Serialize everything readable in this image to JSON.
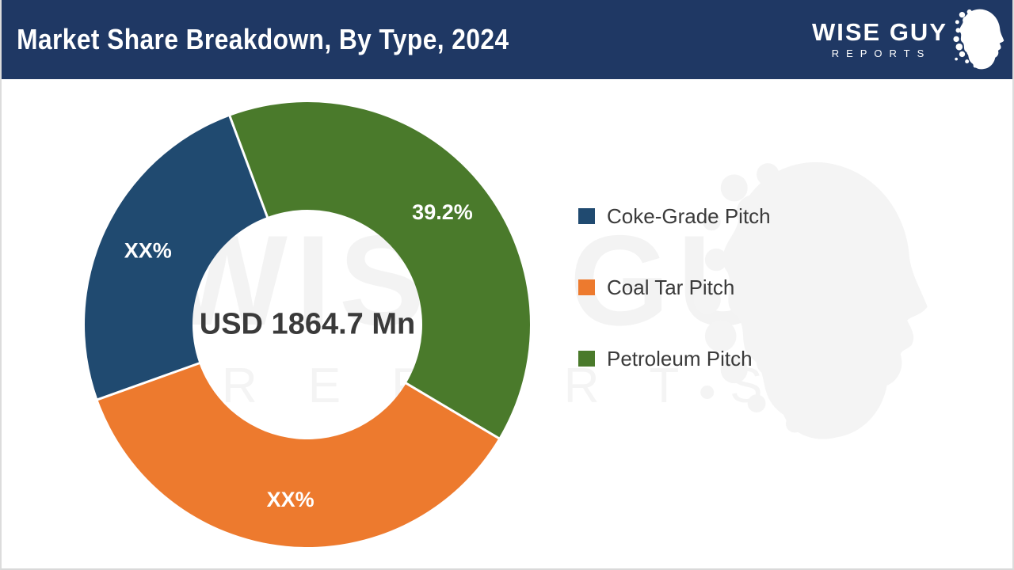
{
  "header": {
    "title": "Market Share Breakdown, By Type, 2024",
    "logo": {
      "line1": "WISE GUY",
      "line2": "REPORTS"
    }
  },
  "watermark": {
    "line1": "WISE GUY",
    "line2": "REPORTS"
  },
  "chart_data": {
    "type": "donut",
    "center_label": "USD 1864.7 Mn",
    "start_angle_deg": -20.4,
    "draw_sequence": [
      2,
      1,
      0
    ],
    "legend_position": "right",
    "segments": [
      {
        "name": "Coke-Grade Pitch",
        "value": 24.8,
        "display_label": "XX%",
        "color": "#204a70"
      },
      {
        "name": "Coal Tar Pitch",
        "value": 36.0,
        "display_label": "XX%",
        "color": "#ed7a2e"
      },
      {
        "name": "Petroleum Pitch",
        "value": 39.2,
        "display_label": "39.2%",
        "color": "#4a7a2b"
      }
    ]
  },
  "colors": {
    "header_bg": "#1f3864",
    "separator": "#ffffff",
    "center_text": "#3a3a3a",
    "legend_text": "#3a3a3a"
  }
}
